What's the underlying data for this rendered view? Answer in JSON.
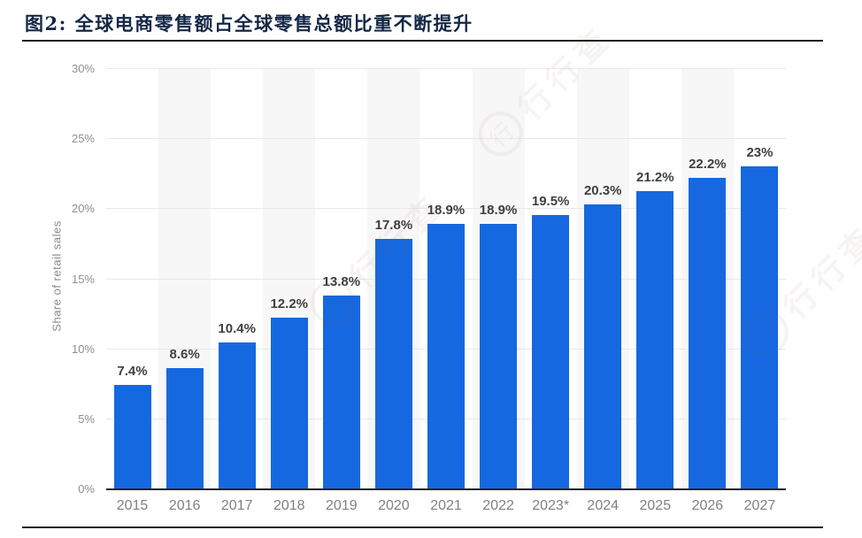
{
  "header": {
    "title": "图2:  全球电商零售额占全球零售总额比重不断提升"
  },
  "colors": {
    "bar": "#1668e0",
    "title": "#142745",
    "band": "#f7f7f7",
    "gridline": "#e8e8e8",
    "axis_line": "#242424",
    "value_label": "#3f3f3f",
    "tick_label": "#8f8f8f",
    "year_label": "#808080",
    "rule": "#1a1a1a"
  },
  "watermark": {
    "logo": "行",
    "text": "行行查"
  },
  "chart_data": {
    "type": "bar",
    "title": "全球电商零售额占全球零售总额比重不断提升",
    "categories": [
      "2015",
      "2016",
      "2017",
      "2018",
      "2019",
      "2020",
      "2021",
      "2022",
      "2023*",
      "2024",
      "2025",
      "2026",
      "2027"
    ],
    "values": [
      7.4,
      8.6,
      10.4,
      12.2,
      13.8,
      17.8,
      18.9,
      18.9,
      19.5,
      20.3,
      21.2,
      22.2,
      23
    ],
    "value_labels": [
      "7.4%",
      "8.6%",
      "10.4%",
      "12.2%",
      "13.8%",
      "17.8%",
      "18.9%",
      "18.9%",
      "19.5%",
      "20.3%",
      "21.2%",
      "22.2%",
      "23%"
    ],
    "xlabel": "",
    "ylabel": "Share of retail sales",
    "ylim": [
      0,
      30
    ],
    "y_tick_values": [
      0,
      5,
      10,
      15,
      20,
      25,
      30
    ],
    "y_tick_labels": [
      "0%",
      "5%",
      "10%",
      "15%",
      "20%",
      "25%",
      "30%"
    ],
    "grid": true,
    "legend": false,
    "plot_bands": "alternating vertical light-gray columns"
  }
}
